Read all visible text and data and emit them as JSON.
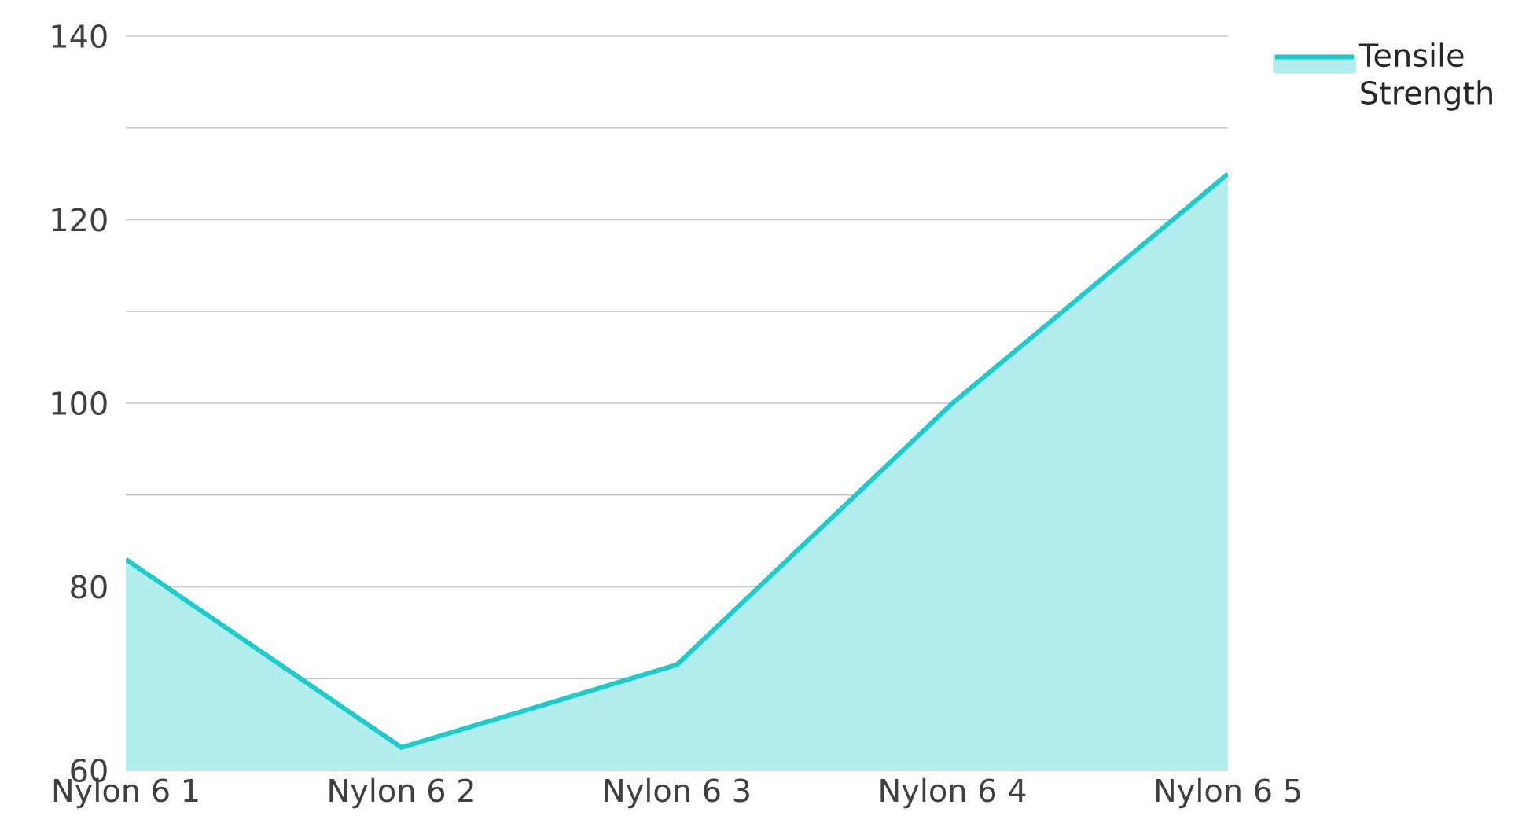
{
  "chart_data": {
    "type": "area",
    "categories": [
      "Nylon 6 1",
      "Nylon 6 2",
      "Nylon 6 3",
      "Nylon 6 4",
      "Nylon 6 5"
    ],
    "series": [
      {
        "name": "Tensile Strength",
        "color": "#1ccccc",
        "values": [
          83,
          62.5,
          71.5,
          100,
          125
        ]
      }
    ],
    "ylim": [
      60,
      140
    ],
    "yticks": [
      60,
      {
        "value": 70,
        "label": null
      },
      80,
      {
        "value": 90,
        "label": null
      },
      100,
      {
        "value": 110,
        "label": null
      },
      120,
      {
        "value": 130,
        "label": null
      },
      140
    ],
    "grid": "y",
    "legend": "top right"
  }
}
